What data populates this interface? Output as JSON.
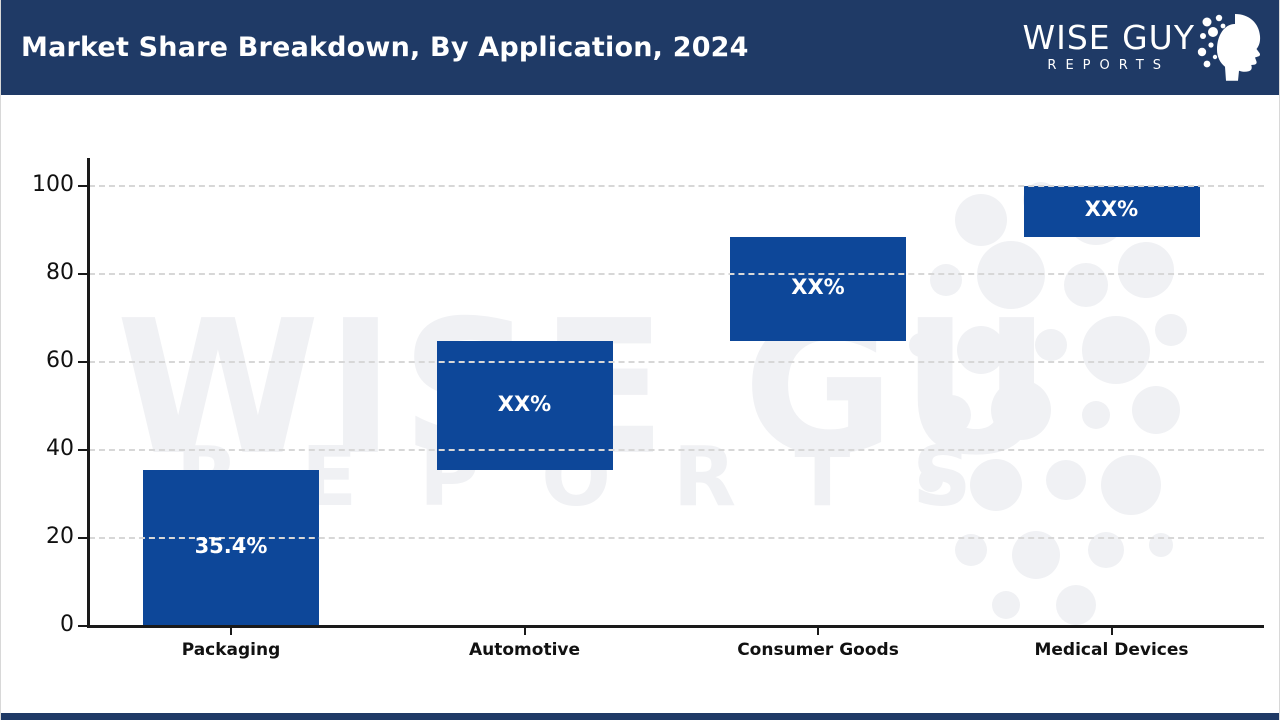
{
  "header": {
    "title": "Market Share Breakdown, By Application, 2024",
    "bg_color": "#1f3a66",
    "logo": {
      "line1": "WISE GUY",
      "line2": "REPORTS"
    }
  },
  "watermark": {
    "line1": "WISE GU",
    "line2": "REPORTS"
  },
  "chart_data": {
    "type": "bar",
    "subtype": "waterfall",
    "title": "Market Share Breakdown, By Application, 2024",
    "xlabel": "",
    "ylabel": "",
    "categories": [
      "Packaging",
      "Automotive",
      "Consumer Goods",
      "Medical Devices"
    ],
    "segments": [
      {
        "category": "Packaging",
        "start": 0,
        "end": 35.4,
        "label": "35.4%"
      },
      {
        "category": "Automotive",
        "start": 35.4,
        "end": 64.8,
        "label": "XX%"
      },
      {
        "category": "Consumer Goods",
        "start": 64.8,
        "end": 88.5,
        "label": "XX%"
      },
      {
        "category": "Medical Devices",
        "start": 88.5,
        "end": 100,
        "label": "XX%"
      }
    ],
    "y_ticks": [
      0,
      20,
      40,
      60,
      80,
      100
    ],
    "ylim": [
      0,
      106
    ],
    "grid": true,
    "grid_style": "dashed",
    "legend": "none",
    "bar_color": "#0d4799",
    "bar_label_color": "#ffffff",
    "axis_color": "#1a1a1a"
  }
}
